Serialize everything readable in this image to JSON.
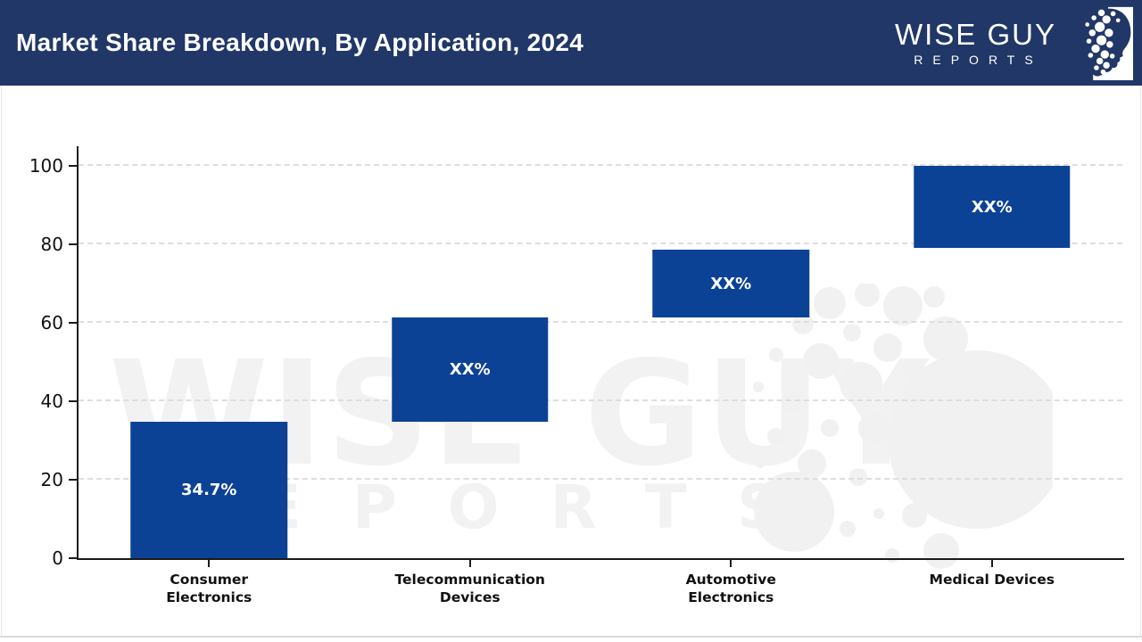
{
  "header": {
    "title": "Market Share Breakdown, By Application, 2024",
    "bg_color": "#203767",
    "logo": {
      "line1": "WISE GUY",
      "line2": "REPORTS"
    }
  },
  "watermark": {
    "line1": "WISE GUY",
    "line2": "REPORTS"
  },
  "chart_data": {
    "type": "bar",
    "variant": "waterfall",
    "title": "Market Share Breakdown, By Application, 2024",
    "categories": [
      "Consumer Electronics",
      "Telecommunication Devices",
      "Automotive Electronics",
      "Medical Devices"
    ],
    "category_lines": [
      [
        "Consumer",
        "Electronics"
      ],
      [
        "Telecommunication",
        "Devices"
      ],
      [
        "Automotive",
        "Electronics"
      ],
      [
        "Medical Devices"
      ]
    ],
    "series": [
      {
        "name": "Market Share %",
        "segments": [
          {
            "start": 0,
            "end": 34.7,
            "label": "34.7%"
          },
          {
            "start": 34.7,
            "end": 61.4,
            "label": "XX%"
          },
          {
            "start": 61.4,
            "end": 78.6,
            "label": "XX%"
          },
          {
            "start": 79,
            "end": 100,
            "label": "XX%"
          }
        ]
      }
    ],
    "yticks": [
      0,
      20,
      40,
      60,
      80,
      100
    ],
    "ylim": [
      0,
      105
    ],
    "xlabel": "",
    "ylabel": "",
    "bar_color": "#0c4296",
    "value_label_color": "#ffffff",
    "grid": {
      "horizontal": true,
      "style": "dashed",
      "color": "#dedede"
    },
    "axis_color": "#1a1a1a",
    "legend": "none"
  }
}
